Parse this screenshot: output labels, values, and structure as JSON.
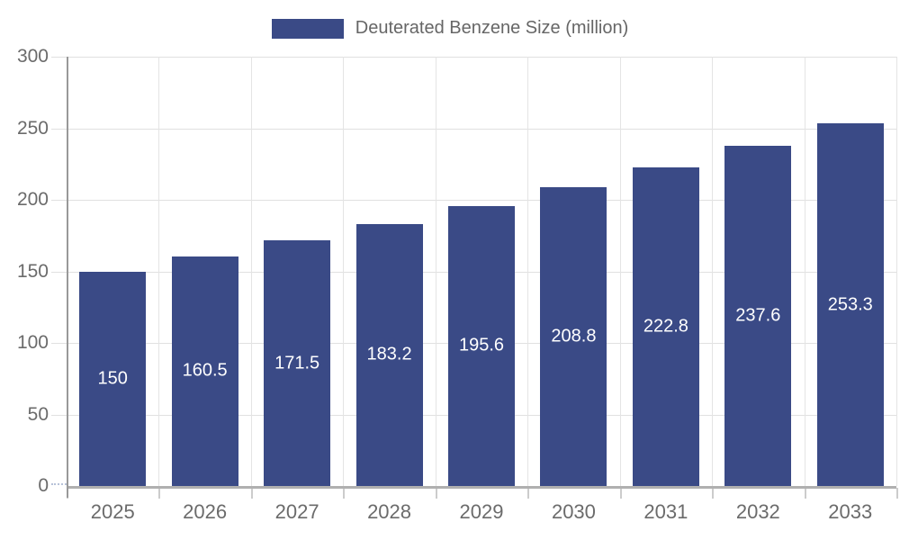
{
  "chart_data": {
    "type": "bar",
    "title": "",
    "legend": "Deuterated Benzene Size (million)",
    "legend_position": "top",
    "categories": [
      "2025",
      "2026",
      "2027",
      "2028",
      "2029",
      "2030",
      "2031",
      "2032",
      "2033"
    ],
    "values": [
      150,
      160.5,
      171.5,
      183.2,
      195.6,
      208.8,
      222.8,
      237.6,
      253.3
    ],
    "value_labels": [
      "150",
      "160.5",
      "171.5",
      "183.2",
      "195.6",
      "208.8",
      "222.8",
      "237.6",
      "253.3"
    ],
    "xlabel": "",
    "ylabel": "",
    "ylim": [
      0,
      300
    ],
    "yticks": [
      0,
      50,
      100,
      150,
      200,
      250,
      300
    ],
    "grid": true,
    "colors": {
      "bar": "#3A4A86",
      "grid": "#e0e0e0",
      "x_axis": "#b0b0b0",
      "y_axis": "#999999",
      "tick_label": "#6b6b6b",
      "value_label": "#ffffff",
      "legend_text": "#666666",
      "background": "#ffffff"
    }
  }
}
